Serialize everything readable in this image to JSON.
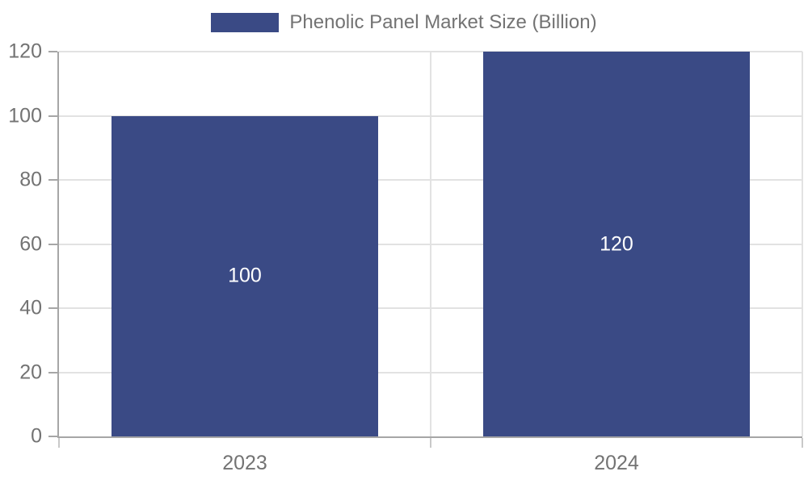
{
  "legend": {
    "label": "Phenolic Panel Market Size (Billion)"
  },
  "colors": {
    "bar": "#3A4A85",
    "bar_label": "#ffffff",
    "legend_text": "#737373",
    "tick_text": "#737373",
    "grid": "#e2e2e2",
    "axis": "#a6a6a6",
    "xtick": "#c9c9c9",
    "background": "#ffffff"
  },
  "chart_data": {
    "type": "bar",
    "title": "Phenolic Panel Market Size (Billion)",
    "categories": [
      "2023",
      "2024"
    ],
    "series": [
      {
        "name": "Phenolic Panel Market Size (Billion)",
        "values": [
          100,
          120
        ]
      }
    ],
    "bar_labels": [
      "100",
      "120"
    ],
    "xlabel": "",
    "ylabel": "",
    "ylim": [
      0,
      120
    ],
    "yticks": [
      0,
      20,
      40,
      60,
      80,
      100,
      120
    ],
    "grid": true,
    "legend_position": "top",
    "bar_width_fraction": 0.717
  }
}
